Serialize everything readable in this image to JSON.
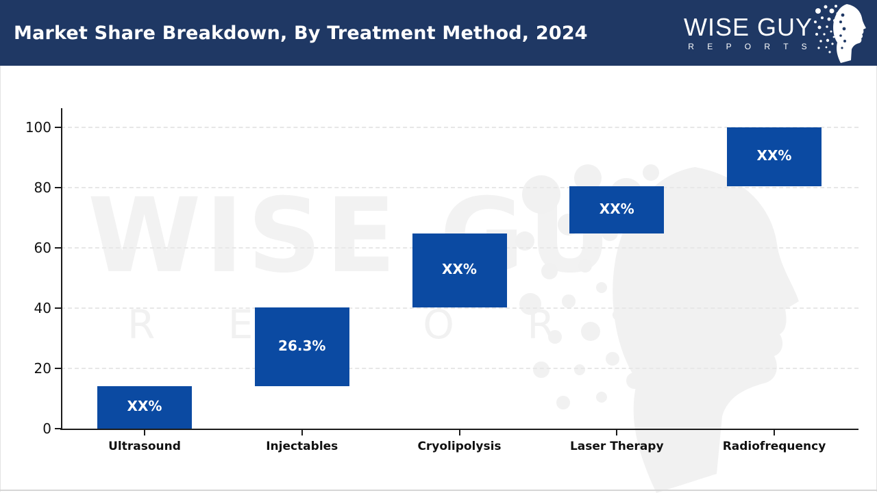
{
  "header": {
    "title": "Market Share Breakdown, By Treatment Method, 2024",
    "logo": {
      "name": "WISE GUY",
      "sub": "R E P O R T S"
    }
  },
  "watermark": {
    "name": "WISE GUY",
    "sub": "R E P O R T S"
  },
  "chart_data": {
    "type": "bar",
    "variant": "waterfall",
    "title": "Market Share Breakdown, By Treatment Method, 2024",
    "categories": [
      "Ultrasound",
      "Injectables",
      "Cryolipolysis",
      "Laser Therapy",
      "Radiofrequency"
    ],
    "segments": [
      {
        "category": "Ultrasound",
        "start": 0,
        "end": 14,
        "label": "XX%"
      },
      {
        "category": "Injectables",
        "start": 14,
        "end": 40.3,
        "label": "26.3%"
      },
      {
        "category": "Cryolipolysis",
        "start": 40.3,
        "end": 64.7,
        "label": "XX%"
      },
      {
        "category": "Laser Therapy",
        "start": 64.7,
        "end": 80.4,
        "label": "XX%"
      },
      {
        "category": "Radiofrequency",
        "start": 80.4,
        "end": 100,
        "label": "XX%"
      }
    ],
    "xlabel": "",
    "ylabel": "",
    "ylim": [
      0,
      100
    ],
    "yticks": [
      0,
      20,
      40,
      60,
      80,
      100
    ],
    "grid": "horizontal-dashed",
    "legend": "none",
    "bar_color": "#0b4aa2",
    "bar_label_color": "#ffffff"
  },
  "colors": {
    "header_bg": "#1f3864",
    "bar": "#0b4aa2",
    "grid": "#e7e7e7",
    "axis": "#1a1a1a",
    "watermark": "#f2f2f2"
  }
}
